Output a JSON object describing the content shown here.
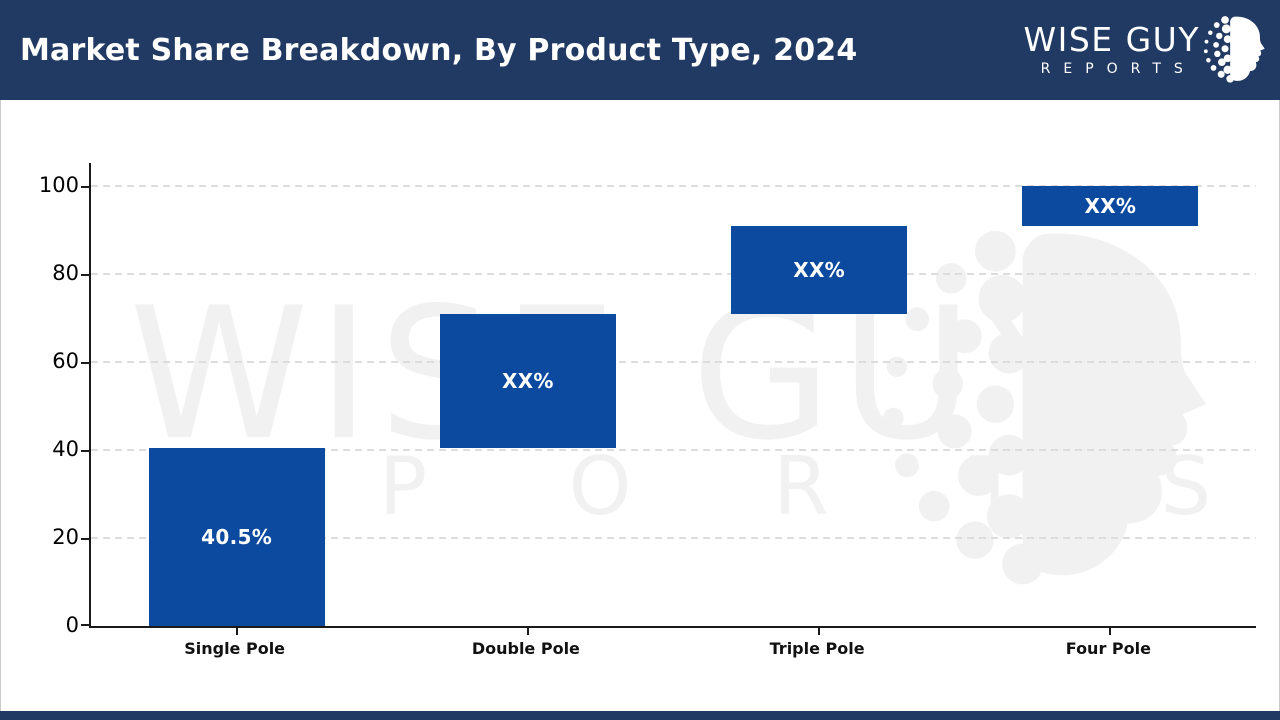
{
  "header": {
    "title": "Market Share Breakdown, By Product Type, 2024",
    "logo": {
      "line1": "WISE GUY",
      "line2": "REPORTS"
    }
  },
  "watermark": {
    "line1": "WISE GUY",
    "line2": "P O R T S"
  },
  "colors": {
    "header_bg": "#213A63",
    "footer_bg": "#213A63",
    "bar": "#0B4A9E",
    "bar_label": "#ffffff",
    "grid": "#dcdcdc",
    "axis": "#1a1a1a",
    "watermark": "#f1f1f1",
    "title_text": "#ffffff"
  },
  "chart_data": {
    "type": "bar",
    "subtype": "waterfall",
    "title": "Market Share Breakdown, By Product Type, 2024",
    "categories": [
      "Single Pole",
      "Double Pole",
      "Triple Pole",
      "Four Pole"
    ],
    "segments": [
      {
        "category": "Single Pole",
        "start": 0,
        "end": 40.5,
        "label": "40.5%"
      },
      {
        "category": "Double Pole",
        "start": 40.5,
        "end": 71,
        "label": "XX%"
      },
      {
        "category": "Triple Pole",
        "start": 71,
        "end": 91,
        "label": "XX%"
      },
      {
        "category": "Four Pole",
        "start": 91,
        "end": 100,
        "label": "XX%"
      }
    ],
    "units": "%",
    "xlabel": "",
    "ylabel": "",
    "ylim": [
      0,
      105
    ],
    "yticks": [
      0,
      20,
      40,
      60,
      80,
      100
    ],
    "grid": "horizontal-dashed",
    "legend": null
  }
}
